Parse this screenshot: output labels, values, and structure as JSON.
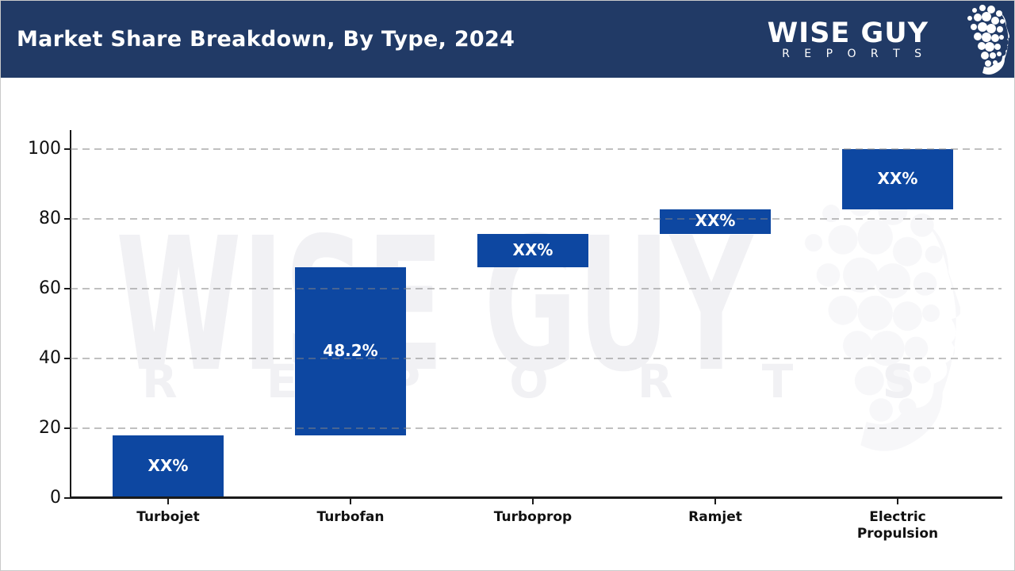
{
  "header": {
    "title": "Market Share Breakdown, By Type, 2024",
    "bg_color": "#213a66",
    "logo": {
      "line1": "WISE GUY",
      "line2": "R E P O R T S"
    }
  },
  "watermark": {
    "line1": "WISE GUY",
    "line2": "R E P O R T S"
  },
  "chart_data": {
    "type": "bar",
    "subtype": "waterfall",
    "title": "Market Share Breakdown, By Type, 2024",
    "categories": [
      "Turbojet",
      "Turbofan",
      "Turboprop",
      "Ramjet",
      "Electric Propulsion"
    ],
    "segments": [
      {
        "category": "Turbojet",
        "start": 0,
        "end": 18,
        "label": "XX%"
      },
      {
        "category": "Turbofan",
        "start": 18,
        "end": 66.2,
        "label": "48.2%"
      },
      {
        "category": "Turboprop",
        "start": 66.2,
        "end": 75.7,
        "label": "XX%"
      },
      {
        "category": "Ramjet",
        "start": 75.7,
        "end": 82.8,
        "label": "XX%"
      },
      {
        "category": "Electric Propulsion",
        "start": 82.8,
        "end": 100,
        "label": "XX%"
      }
    ],
    "yticks": [
      0,
      20,
      40,
      60,
      80,
      100
    ],
    "ytick_labels": [
      "0",
      "20",
      "40",
      "60",
      "80",
      "100"
    ],
    "ylim": [
      0,
      105
    ],
    "xlabel": "",
    "ylabel": "",
    "bar_color": "#0d47a1",
    "grid": "horizontal dashed, drawn over bars",
    "legend": "none"
  }
}
